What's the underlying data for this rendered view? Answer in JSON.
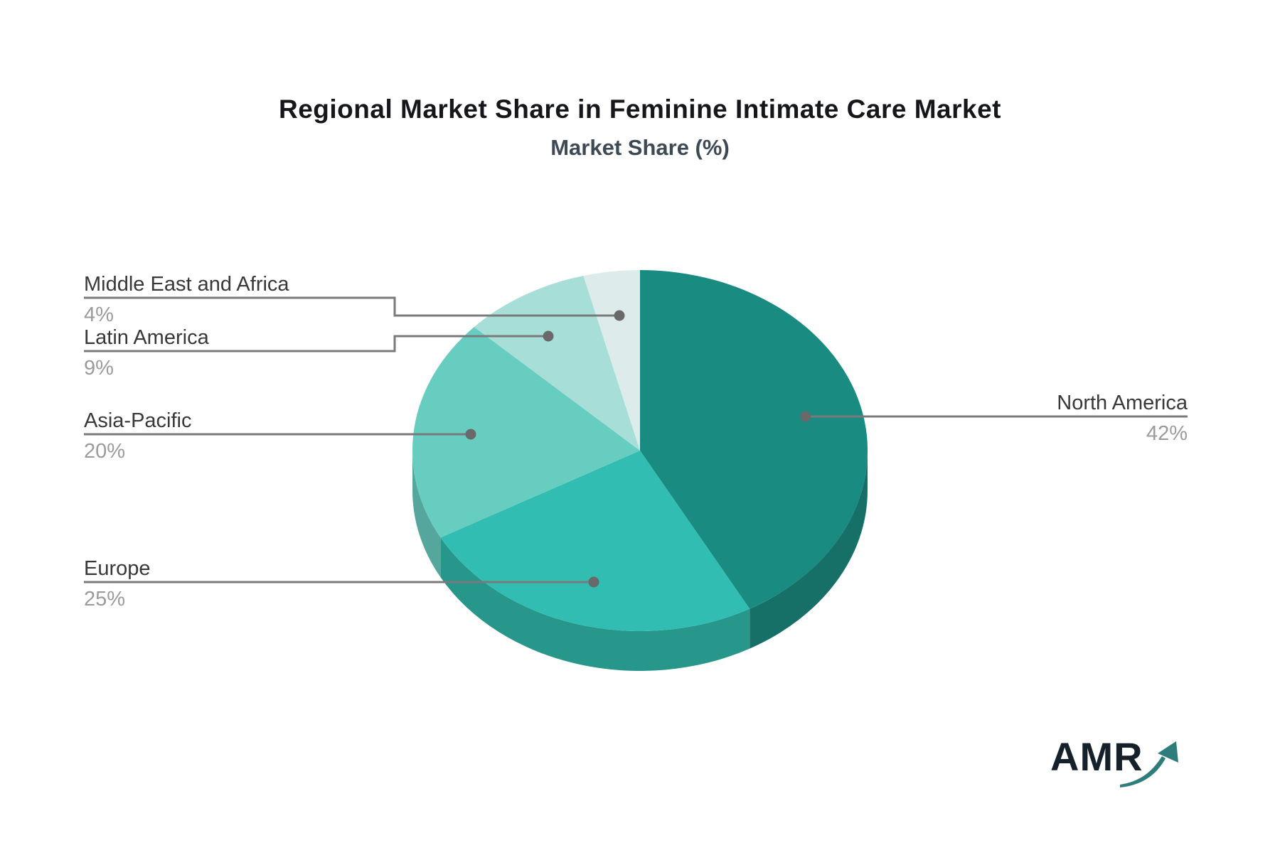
{
  "header": {
    "title": "Regional Market Share in Feminine Intimate Care Market",
    "subtitle": "Market Share (%)"
  },
  "chart_data": {
    "type": "pie",
    "title": "Regional Market Share in Feminine Intimate Care Market",
    "subtitle": "Market Share (%)",
    "unit": "%",
    "style": "3d-pie, clockwise from top, no legend, leader-line callouts",
    "categories": [
      "North America",
      "Europe",
      "Asia-Pacific",
      "Latin America",
      "Middle East and Africa"
    ],
    "values": [
      42,
      25,
      20,
      9,
      4
    ],
    "pct_labels": [
      "42%",
      "25%",
      "20%",
      "9%",
      "4%"
    ],
    "colors": [
      "#1a8b80",
      "#31bdb1",
      "#67cdc1",
      "#a7ded8",
      "#ddecea"
    ],
    "side_colors": [
      "#177067",
      "#27968b",
      "#55a79e",
      "#8fc4be",
      "#c2d8d5"
    ],
    "leader_line_color": "#7a7a7a",
    "leader_dot_color": "#696969"
  },
  "logo": {
    "text": "AMR",
    "arrow_color": "#2e7d7a"
  }
}
